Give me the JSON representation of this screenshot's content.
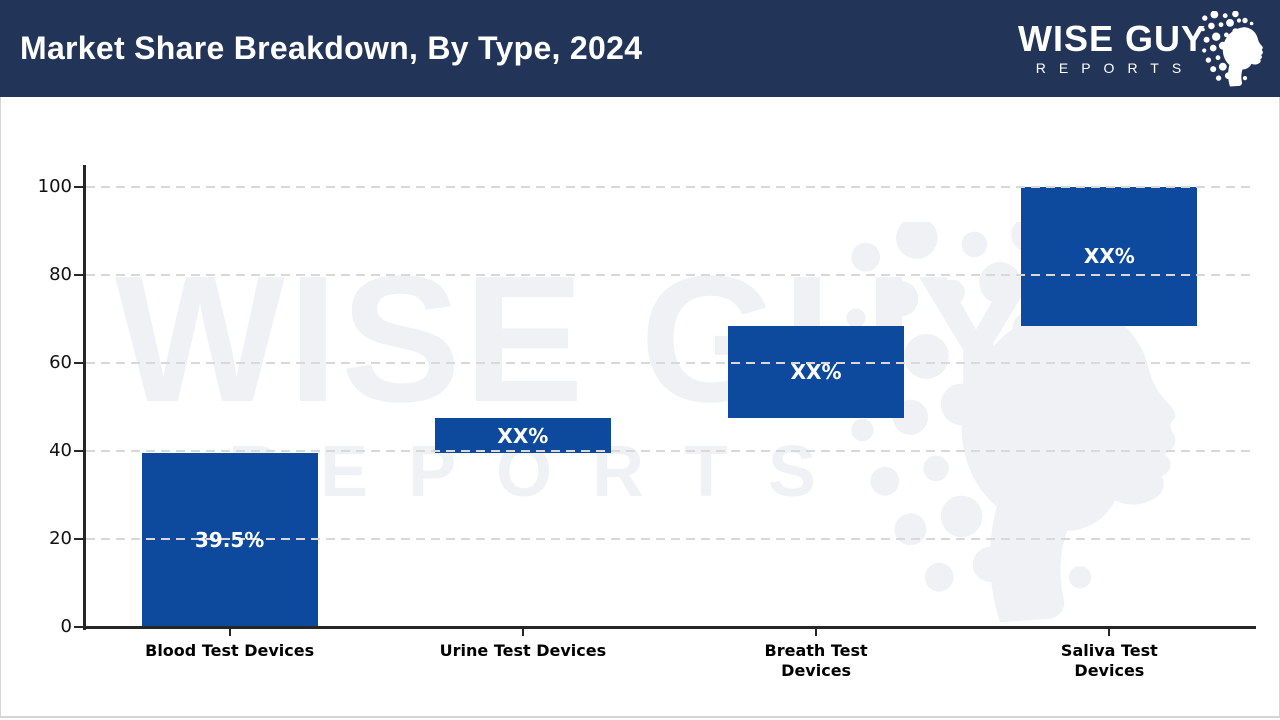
{
  "header": {
    "title": "Market Share Breakdown, By Type, 2024",
    "logo": {
      "name": "WISE GUY",
      "sub": "REPORTS"
    }
  },
  "watermark": {
    "name": "WISE GUY",
    "sub": "REPORTS"
  },
  "chart_data": {
    "type": "bar",
    "variant": "waterfall",
    "title": "Market Share Breakdown, By Type, 2024",
    "unit": "%",
    "categories": [
      "Blood Test Devices",
      "Urine Test Devices",
      "Breath Test Devices",
      "Saliva Test Devices"
    ],
    "category_lines": [
      [
        "Blood Test Devices"
      ],
      [
        "Urine Test Devices"
      ],
      [
        "Breath Test",
        "Devices"
      ],
      [
        "Saliva Test",
        "Devices"
      ]
    ],
    "segments": [
      {
        "category": "Blood Test Devices",
        "start": 0,
        "end": 39.5,
        "label": "39.5%"
      },
      {
        "category": "Urine Test Devices",
        "start": 39.5,
        "end": 47.5,
        "label": "XX%"
      },
      {
        "category": "Breath Test Devices",
        "start": 47.5,
        "end": 68.5,
        "label": "XX%"
      },
      {
        "category": "Saliva Test Devices",
        "start": 68.5,
        "end": 100,
        "label": "XX%"
      }
    ],
    "ylim": [
      0,
      100
    ],
    "yticks": [
      0,
      20,
      40,
      60,
      80,
      100
    ],
    "grid": {
      "horizontal": true,
      "style": "dashed"
    },
    "legend": "none",
    "colors": {
      "bar": "#0d4a9e",
      "bar_label": "#ffffff",
      "axis": "#262626",
      "grid": "#d9d9d9",
      "tick_label": "#111111",
      "header_bg": "#223457",
      "header_text": "#ffffff",
      "watermark": "#eff1f4",
      "page_border": "#d5d5d5"
    }
  }
}
